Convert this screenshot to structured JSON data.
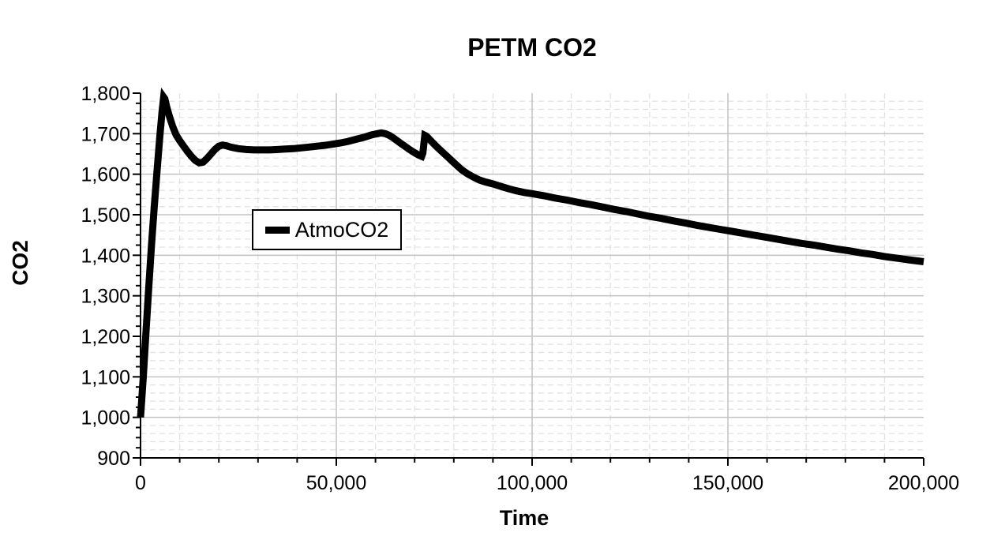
{
  "title": "PETM CO2",
  "x_axis": {
    "title": "Time",
    "min": 0,
    "max": 200000,
    "major_step": 50000,
    "minor_tick_step": 10000,
    "minor_grid_step": 10000,
    "tick_labels": [
      "0",
      "50,000",
      "100,000",
      "150,000",
      "200,000"
    ]
  },
  "y_axis": {
    "title": "CO2",
    "min": 900,
    "max": 1800,
    "major_step": 100,
    "minor_tick_step": 25,
    "minor_grid_step": 20,
    "tick_labels": [
      "900",
      "1,000",
      "1,100",
      "1,200",
      "1,300",
      "1,400",
      "1,500",
      "1,600",
      "1,700",
      "1,800"
    ]
  },
  "legend": {
    "items": [
      {
        "label": "AtmoCO2",
        "color": "#000000"
      }
    ]
  },
  "colors": {
    "line": "#000000",
    "axis": "#000000",
    "text": "#000000",
    "grid_major": "#c3c3c3",
    "grid_minor": "#e0e0e0",
    "background": "#ffffff",
    "legend_border": "#000000"
  },
  "chart_data": {
    "type": "line",
    "title": "PETM CO2",
    "xlabel": "Time",
    "ylabel": "CO2",
    "xlim": [
      0,
      200000
    ],
    "ylim": [
      900,
      1800
    ],
    "grid": "major-solid-minor-dashed",
    "legend_position": "inside-left-center",
    "series": [
      {
        "name": "AtmoCO2",
        "color": "#000000",
        "line_width": 9,
        "points": [
          [
            0,
            1000
          ],
          [
            700,
            1100
          ],
          [
            1400,
            1210
          ],
          [
            2100,
            1320
          ],
          [
            2800,
            1425
          ],
          [
            3500,
            1520
          ],
          [
            4200,
            1605
          ],
          [
            4900,
            1690
          ],
          [
            5500,
            1755
          ],
          [
            5900,
            1790
          ],
          [
            6200,
            1786
          ],
          [
            6700,
            1766
          ],
          [
            7400,
            1742
          ],
          [
            8200,
            1718
          ],
          [
            9100,
            1697
          ],
          [
            10000,
            1683
          ],
          [
            11000,
            1669
          ],
          [
            12000,
            1656
          ],
          [
            13000,
            1644
          ],
          [
            14000,
            1634
          ],
          [
            15000,
            1628
          ],
          [
            16000,
            1630
          ],
          [
            17000,
            1639
          ],
          [
            18000,
            1650
          ],
          [
            19000,
            1661
          ],
          [
            20000,
            1669
          ],
          [
            21000,
            1672
          ],
          [
            22000,
            1670
          ],
          [
            23000,
            1667
          ],
          [
            24000,
            1665
          ],
          [
            25000,
            1663
          ],
          [
            27000,
            1661
          ],
          [
            29000,
            1660
          ],
          [
            31000,
            1660
          ],
          [
            33000,
            1660
          ],
          [
            35000,
            1661
          ],
          [
            37000,
            1662
          ],
          [
            39000,
            1663
          ],
          [
            41000,
            1665
          ],
          [
            43000,
            1667
          ],
          [
            45000,
            1669
          ],
          [
            47000,
            1671
          ],
          [
            49000,
            1674
          ],
          [
            51000,
            1677
          ],
          [
            53000,
            1681
          ],
          [
            55000,
            1686
          ],
          [
            57000,
            1691
          ],
          [
            59000,
            1697
          ],
          [
            60500,
            1700
          ],
          [
            61500,
            1702
          ],
          [
            62500,
            1700
          ],
          [
            63500,
            1696
          ],
          [
            64500,
            1690
          ],
          [
            65500,
            1683
          ],
          [
            66500,
            1676
          ],
          [
            67500,
            1669
          ],
          [
            68500,
            1662
          ],
          [
            69500,
            1656
          ],
          [
            70500,
            1650
          ],
          [
            71300,
            1646
          ],
          [
            71800,
            1644
          ],
          [
            72100,
            1652
          ],
          [
            72400,
            1678
          ],
          [
            72600,
            1696
          ],
          [
            73000,
            1694
          ],
          [
            73600,
            1688
          ],
          [
            74400,
            1680
          ],
          [
            75400,
            1670
          ],
          [
            76400,
            1661
          ],
          [
            77400,
            1652
          ],
          [
            78400,
            1643
          ],
          [
            79400,
            1634
          ],
          [
            80500,
            1624
          ],
          [
            82000,
            1611
          ],
          [
            83500,
            1601
          ],
          [
            85000,
            1593
          ],
          [
            86500,
            1586
          ],
          [
            88000,
            1581
          ],
          [
            90000,
            1576
          ],
          [
            92000,
            1570
          ],
          [
            94000,
            1564
          ],
          [
            96000,
            1559
          ],
          [
            98000,
            1555
          ],
          [
            100000,
            1552
          ],
          [
            103000,
            1547
          ],
          [
            106000,
            1541
          ],
          [
            109000,
            1536
          ],
          [
            112000,
            1530
          ],
          [
            115000,
            1525
          ],
          [
            118000,
            1519
          ],
          [
            121000,
            1513
          ],
          [
            124000,
            1508
          ],
          [
            127000,
            1502
          ],
          [
            130000,
            1496
          ],
          [
            133000,
            1491
          ],
          [
            136000,
            1485
          ],
          [
            139000,
            1480
          ],
          [
            142000,
            1474
          ],
          [
            145000,
            1469
          ],
          [
            148000,
            1464
          ],
          [
            151000,
            1459
          ],
          [
            154000,
            1454
          ],
          [
            157000,
            1449
          ],
          [
            160000,
            1444
          ],
          [
            163000,
            1439
          ],
          [
            166000,
            1434
          ],
          [
            169000,
            1429
          ],
          [
            172000,
            1425
          ],
          [
            175000,
            1420
          ],
          [
            178000,
            1415
          ],
          [
            181000,
            1411
          ],
          [
            184000,
            1406
          ],
          [
            187000,
            1402
          ],
          [
            190000,
            1397
          ],
          [
            193000,
            1393
          ],
          [
            196000,
            1389
          ],
          [
            200000,
            1384
          ]
        ]
      }
    ]
  }
}
